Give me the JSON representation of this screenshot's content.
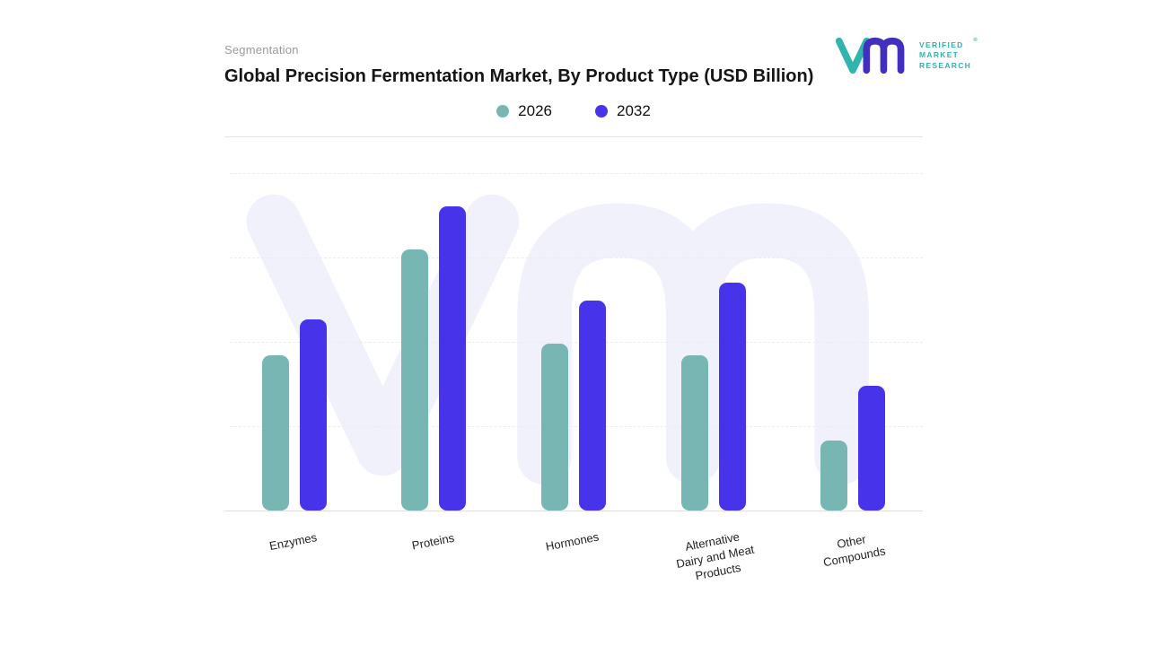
{
  "header": {
    "eyebrow": "Segmentation",
    "title": "Global Precision Fermentation Market, By Product Type (USD Billion)"
  },
  "logo": {
    "line1": "VERIFIED",
    "line2": "MARKET",
    "line3": "RESEARCH",
    "registered": "®"
  },
  "legend": [
    {
      "label": "2026",
      "color": "#78b6b4"
    },
    {
      "label": "2032",
      "color": "#4733e9"
    }
  ],
  "chart_data": {
    "type": "bar",
    "title": "Global Precision Fermentation Market, By Product Type (USD Billion)",
    "categories": [
      "Enzymes",
      "Proteins",
      "Hormones",
      "Alternative Dairy and Meat Products",
      "Other Compounds"
    ],
    "tick_labels": [
      "Enzymes",
      "Proteins",
      "Hormones",
      "Alternative\nDairy and Meat\nProducts",
      "Other\nCompounds"
    ],
    "series": [
      {
        "name": "2026",
        "color": "#78b6b4",
        "values": [
          51,
          86,
          55,
          51,
          23
        ]
      },
      {
        "name": "2032",
        "color": "#4733e9",
        "values": [
          63,
          100,
          69,
          75,
          41
        ]
      }
    ],
    "xlabel": "",
    "ylabel": "",
    "ylim": [
      0,
      111
    ],
    "note": "y-axis has no tick labels in source; values are relative estimates scaled so the tallest bar (Proteins 2032) = 100",
    "grid": "horizontal dashed",
    "legend_position": "top-center"
  },
  "colors": {
    "teal": "#78b6b4",
    "indigo": "#4733e9",
    "watermark": "#f0f1fa",
    "gridline": "#ececec",
    "divider": "#e4e4e4"
  }
}
